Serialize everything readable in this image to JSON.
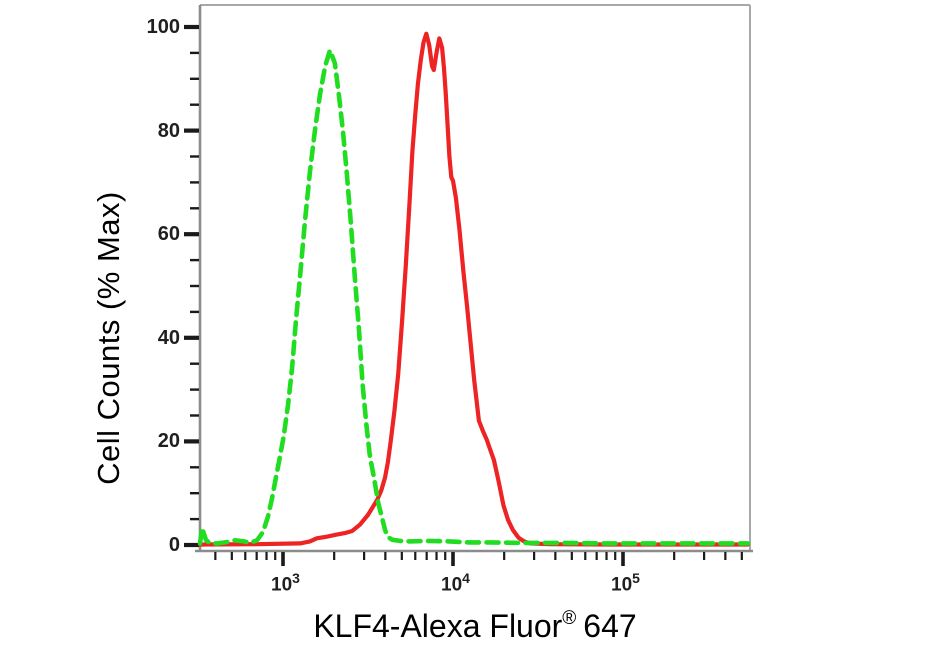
{
  "figure": {
    "y_axis": {
      "title": "Cell Counts (% Max)",
      "range": [
        0,
        100
      ],
      "major_ticks": [
        0,
        20,
        40,
        60,
        80,
        100
      ],
      "minor_step": 5
    },
    "x_axis": {
      "title_prefix": "KLF4-Alexa Fluor",
      "title_sup": "®",
      "title_suffix": "647",
      "scale": "log",
      "range": [
        325,
        558000
      ],
      "decades": [
        {
          "exp": 2,
          "labeled": false,
          "minor_mult": [
            4,
            5,
            6,
            7,
            8,
            9
          ]
        },
        {
          "exp": 3,
          "labeled": true,
          "label_base": "10",
          "label_exp": "3",
          "minor_mult": [
            2,
            3,
            4,
            5,
            6,
            7,
            8,
            9
          ]
        },
        {
          "exp": 4,
          "labeled": true,
          "label_base": "10",
          "label_exp": "4",
          "minor_mult": [
            2,
            3,
            4,
            5,
            6,
            7,
            8,
            9
          ]
        },
        {
          "exp": 5,
          "labeled": true,
          "label_base": "10",
          "label_exp": "5",
          "minor_mult": [
            2,
            3,
            4,
            5
          ]
        }
      ]
    },
    "colors": {
      "frame": "#a8a8a8",
      "axis_line": "#8c8c8c",
      "tick": "#1a1a1a",
      "control_green": "#21dd21",
      "sample_red": "#ee2323"
    },
    "chart_data": {
      "type": "line",
      "title": "",
      "xlabel": "KLF4-Alexa Fluor®647",
      "ylabel": "Cell Counts (% Max)",
      "x_scale": "log",
      "xlim": [
        325,
        558000
      ],
      "ylim": [
        0,
        100
      ],
      "grid": false,
      "legend": "none",
      "series": [
        {
          "name": "control-dashed-green",
          "style": "dashed",
          "color": "#21dd21",
          "peak": {
            "x": 1890,
            "y": 95.5
          },
          "points": [
            [
              325,
              0.3
            ],
            [
              334,
              3.3
            ],
            [
              352,
              1.0
            ],
            [
              371,
              0.3
            ],
            [
              414,
              0.3
            ],
            [
              474,
              0.6
            ],
            [
              522,
              0.9
            ],
            [
              589,
              0.7
            ],
            [
              639,
              0.4
            ],
            [
              703,
              0.9
            ],
            [
              763,
              2.5
            ],
            [
              816,
              5.5
            ],
            [
              861,
              9
            ],
            [
              908,
              13
            ],
            [
              959,
              17
            ],
            [
              1010,
              21
            ],
            [
              1070,
              27
            ],
            [
              1130,
              34
            ],
            [
              1190,
              43
            ],
            [
              1260,
              52
            ],
            [
              1350,
              63
            ],
            [
              1440,
              72
            ],
            [
              1540,
              80
            ],
            [
              1650,
              87
            ],
            [
              1770,
              92.5
            ],
            [
              1890,
              95.5
            ],
            [
              2020,
              93
            ],
            [
              2130,
              87
            ],
            [
              2250,
              80
            ],
            [
              2370,
              72
            ],
            [
              2510,
              62
            ],
            [
              2640,
              52
            ],
            [
              2790,
              42
            ],
            [
              2940,
              31
            ],
            [
              3100,
              23
            ],
            [
              3250,
              17
            ],
            [
              3430,
              13
            ],
            [
              3640,
              8
            ],
            [
              3830,
              5.2
            ],
            [
              3990,
              2.8
            ],
            [
              4150,
              1.5
            ],
            [
              4400,
              1.0
            ],
            [
              4880,
              0.8
            ],
            [
              5520,
              0.7
            ],
            [
              7240,
              0.8
            ],
            [
              9510,
              0.7
            ],
            [
              12500,
              0.5
            ],
            [
              16400,
              0.5
            ],
            [
              24600,
              0.4
            ],
            [
              42400,
              0.4
            ],
            [
              73200,
              0.3
            ],
            [
              144000,
              0.3
            ],
            [
              284000,
              0.3
            ],
            [
              543000,
              0.3
            ]
          ]
        },
        {
          "name": "klf4-solid-red",
          "style": "solid",
          "color": "#ee2323",
          "peak": {
            "x": 6970,
            "y": 98.7
          },
          "points": [
            [
              325,
              0.1
            ],
            [
              700,
              0.15
            ],
            [
              1260,
              0.3
            ],
            [
              1440,
              0.7
            ],
            [
              1580,
              1.3
            ],
            [
              1810,
              1.6
            ],
            [
              2070,
              2.0
            ],
            [
              2310,
              2.3
            ],
            [
              2550,
              2.7
            ],
            [
              2830,
              3.9
            ],
            [
              3160,
              5.8
            ],
            [
              3370,
              7.3
            ],
            [
              3590,
              8.8
            ],
            [
              3780,
              10.5
            ],
            [
              3980,
              13
            ],
            [
              4140,
              16
            ],
            [
              4300,
              20
            ],
            [
              4530,
              26
            ],
            [
              4760,
              33
            ],
            [
              5010,
              43
            ],
            [
              5280,
              54
            ],
            [
              5550,
              66
            ],
            [
              5770,
              76
            ],
            [
              5990,
              83
            ],
            [
              6220,
              89
            ],
            [
              6460,
              93.5
            ],
            [
              6710,
              97
            ],
            [
              6970,
              98.7
            ],
            [
              7240,
              96.5
            ],
            [
              7520,
              92.5
            ],
            [
              7710,
              91.7
            ],
            [
              8000,
              95
            ],
            [
              8310,
              97.8
            ],
            [
              8630,
              96
            ],
            [
              8850,
              92
            ],
            [
              9070,
              87
            ],
            [
              9300,
              81
            ],
            [
              9530,
              75
            ],
            [
              9770,
              71
            ],
            [
              10000,
              70.3
            ],
            [
              10400,
              67
            ],
            [
              10900,
              61
            ],
            [
              11500,
              53
            ],
            [
              12100,
              46
            ],
            [
              12700,
              39
            ],
            [
              13300,
              32
            ],
            [
              14200,
              24
            ],
            [
              15000,
              22
            ],
            [
              15800,
              20.3
            ],
            [
              16600,
              18.3
            ],
            [
              17400,
              16.4
            ],
            [
              18500,
              12.5
            ],
            [
              19800,
              7.7
            ],
            [
              21100,
              4.8
            ],
            [
              22500,
              2.9
            ],
            [
              24300,
              1.4
            ],
            [
              26200,
              0.7
            ],
            [
              28300,
              0.3
            ],
            [
              37000,
              0.15
            ],
            [
              83100,
              0.1
            ],
            [
              284000,
              0.1
            ],
            [
              543000,
              0.1
            ]
          ]
        }
      ]
    }
  }
}
